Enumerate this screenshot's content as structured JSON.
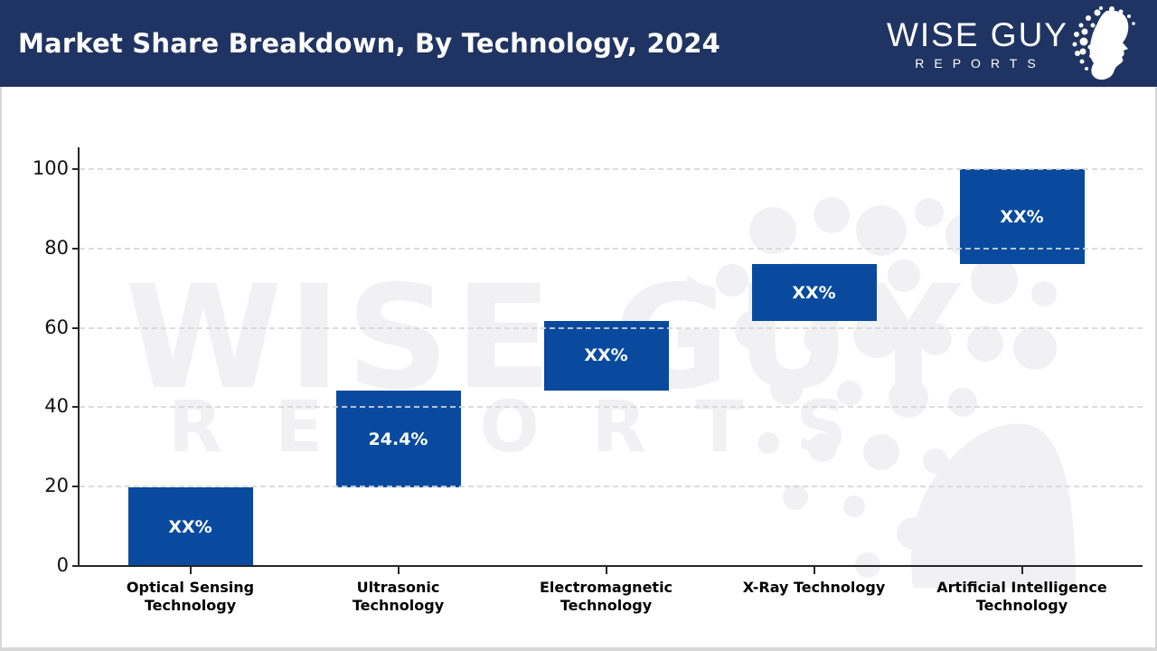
{
  "header": {
    "title": "Market Share Breakdown, By Technology, 2024",
    "logo": {
      "line1": "WISE GUY",
      "line2": "REPORTS",
      "icon": "dotted-face-profile"
    }
  },
  "watermark": {
    "line1": "WISE GUY",
    "line2": "REPORTS"
  },
  "colors": {
    "header_bg": "#1f3462",
    "bar": "#0a4a9e",
    "axis": "#262626",
    "grid": "#d7d7d7",
    "label_on_bar": "#ffffff",
    "tick_text": "#111111",
    "watermark": "#f1f1f3",
    "frame_border": "#d8d8d8"
  },
  "chart_data": {
    "type": "bar",
    "subtype": "waterfall",
    "title": "Market Share Breakdown, By Technology, 2024",
    "xlabel": "",
    "ylabel": "",
    "ylim": [
      0,
      100
    ],
    "yticks": [
      0,
      20,
      40,
      60,
      80,
      100
    ],
    "grid": "dashed-horizontal",
    "legend": "none",
    "categories": [
      "Optical Sensing Technology",
      "Ultrasonic Technology",
      "Electromagnetic Technology",
      "X-Ray Technology",
      "Artificial Intelligence Technology"
    ],
    "bars": [
      {
        "category": "Optical Sensing Technology",
        "start": 0,
        "end": 19.8,
        "height": 19.8,
        "value_label": "XX%"
      },
      {
        "category": "Ultrasonic Technology",
        "start": 19.8,
        "end": 44.2,
        "height": 24.4,
        "value_label": "24.4%"
      },
      {
        "category": "Electromagnetic Technology",
        "start": 44.2,
        "end": 61.8,
        "height": 17.6,
        "value_label": "XX%"
      },
      {
        "category": "X-Ray Technology",
        "start": 61.8,
        "end": 76.0,
        "height": 14.2,
        "value_label": "XX%"
      },
      {
        "category": "Artificial Intelligence Technology",
        "start": 76.0,
        "end": 100,
        "height": 24.0,
        "value_label": "XX%"
      }
    ]
  }
}
